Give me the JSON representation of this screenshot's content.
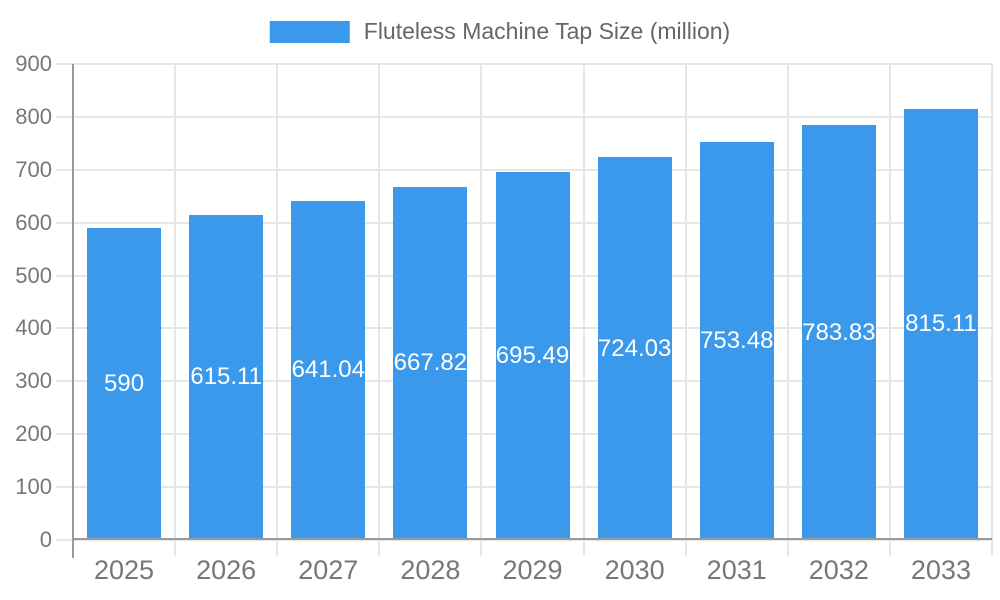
{
  "chart_data": {
    "type": "bar",
    "title": "Fluteless Machine Tap Size (million)",
    "legend": {
      "position": "top-center",
      "entries": [
        {
          "label": "Fluteless Machine Tap Size (million)",
          "color": "#3B99EC"
        }
      ]
    },
    "categories": [
      "2025",
      "2026",
      "2027",
      "2028",
      "2029",
      "2030",
      "2031",
      "2032",
      "2033"
    ],
    "series": [
      {
        "name": "Fluteless Machine Tap Size (million)",
        "values": [
          590,
          615.11,
          641.04,
          667.82,
          695.49,
          724.03,
          753.48,
          783.83,
          815.11
        ],
        "value_labels": [
          "590",
          "615.11",
          "641.04",
          "667.82",
          "695.49",
          "724.03",
          "753.48",
          "783.83",
          "815.11"
        ]
      }
    ],
    "xlabel": "",
    "ylabel": "",
    "ylim": [
      0,
      900
    ],
    "yticks": [
      0,
      100,
      200,
      300,
      400,
      500,
      600,
      700,
      800,
      900
    ],
    "grid": true,
    "value_labels_position": "center-of-bar",
    "colors": {
      "bar": "#3B99EC",
      "grid": "#E6E6E6",
      "axis": "#999999",
      "tick_label": "#777777",
      "legend_text": "#666666",
      "value_label": "#FFFFFF",
      "background": "#FFFFFF"
    }
  }
}
